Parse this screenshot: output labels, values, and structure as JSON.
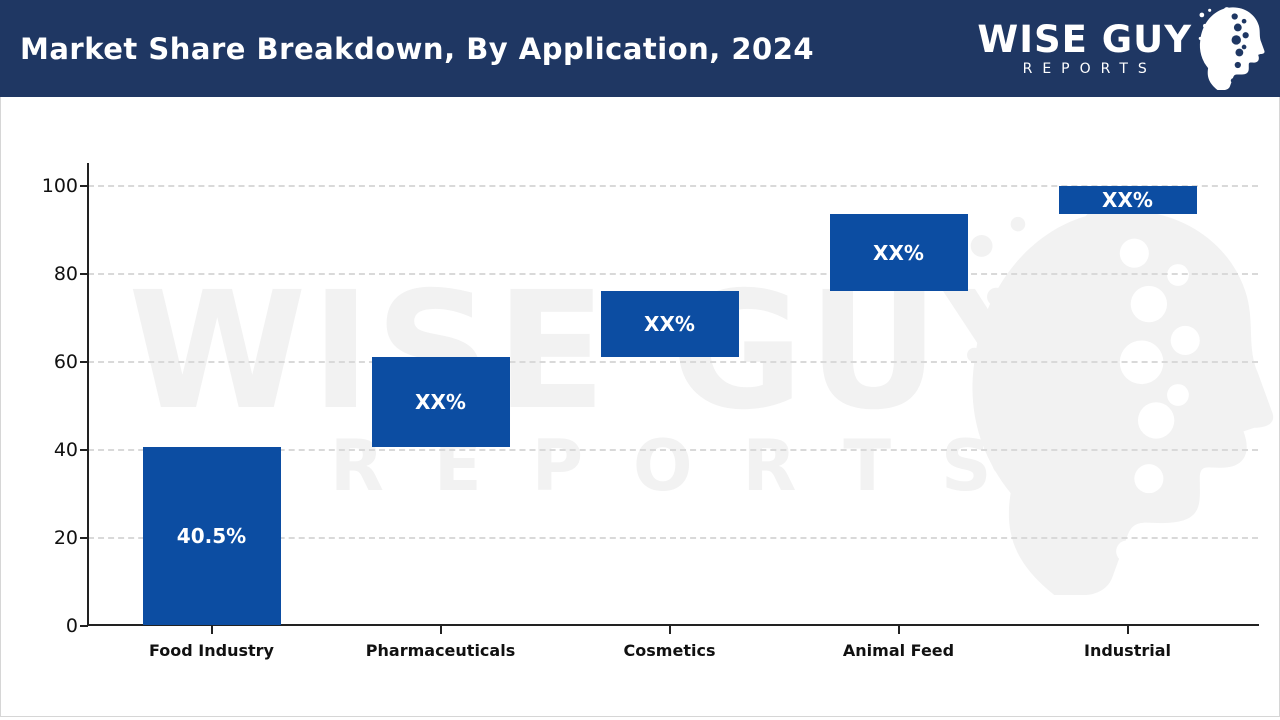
{
  "header": {
    "title": "Market Share Breakdown, By Application, 2024",
    "bg_color": "#1f3763",
    "logo": {
      "line1": "WISE GUY",
      "line2": "REPORTS"
    }
  },
  "watermark": {
    "line1": "WISE GUY",
    "line2": "REPORTS",
    "color": "#f2f2f2"
  },
  "chart_data": {
    "type": "bar",
    "subtype": "waterfall",
    "title": "Market Share Breakdown, By Application, 2024",
    "xlabel": "",
    "ylabel": "",
    "ylim": [
      0,
      100
    ],
    "yticks": [
      0,
      20,
      40,
      60,
      80,
      100
    ],
    "grid": true,
    "legend": "none",
    "categories": [
      "Food Industry",
      "Pharmaceuticals",
      "Cosmetics",
      "Animal Feed",
      "Industrial"
    ],
    "series": [
      {
        "name": "Market Share %",
        "segments": [
          {
            "category": "Food Industry",
            "start": 0,
            "end": 40.5,
            "label": "40.5%"
          },
          {
            "category": "Pharmaceuticals",
            "start": 40.5,
            "end": 61,
            "label": "XX%"
          },
          {
            "category": "Cosmetics",
            "start": 61,
            "end": 76,
            "label": "XX%"
          },
          {
            "category": "Animal Feed",
            "start": 76,
            "end": 93.5,
            "label": "XX%"
          },
          {
            "category": "Industrial",
            "start": 93.5,
            "end": 100,
            "label": "XX%"
          }
        ]
      }
    ],
    "colors": {
      "bar": "#0c4da2",
      "gridline": "#d9d9d9",
      "axis": "#222222",
      "bar_label": "#ffffff",
      "tick_label": "#111111"
    }
  }
}
